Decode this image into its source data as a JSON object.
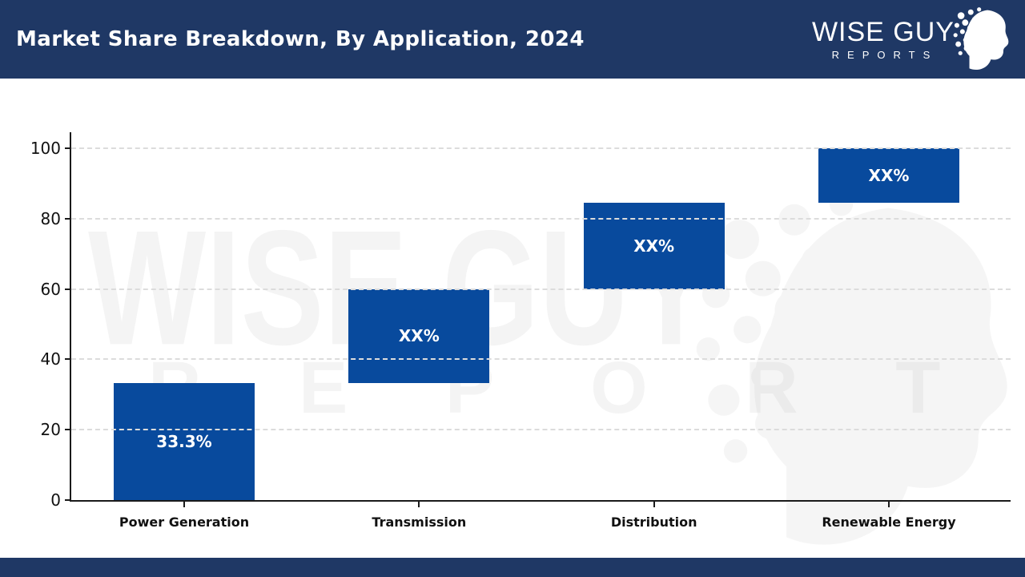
{
  "header": {
    "title": "Market Share Breakdown, By Application, 2024",
    "brand": {
      "line1": "WISE GUY",
      "line2": "REPORTS"
    }
  },
  "watermark": {
    "line1": "WISE GUY",
    "line2": "R E P O R T S"
  },
  "colors": {
    "header_bg": "#1f3865",
    "footer_bg": "#1f3865",
    "bar_fill": "#084a9d",
    "bar_label_text": "#ffffff",
    "gridline": "#dcdcdc",
    "axis": "#1a1a1a",
    "title_text": "#ffffff"
  },
  "chart_data": {
    "type": "bar",
    "variant": "floating-waterfall",
    "title": "Market Share Breakdown, By Application, 2024",
    "categories": [
      "Power Generation",
      "Transmission",
      "Distribution",
      "Renewable Energy"
    ],
    "segments": [
      {
        "category": "Power Generation",
        "start": 0,
        "end": 33.3,
        "value_label": "33.3%"
      },
      {
        "category": "Transmission",
        "start": 33.3,
        "end": 60,
        "value_label": "XX%"
      },
      {
        "category": "Distribution",
        "start": 60,
        "end": 84.5,
        "value_label": "XX%"
      },
      {
        "category": "Renewable Energy",
        "start": 84.5,
        "end": 100,
        "value_label": "XX%"
      }
    ],
    "xlabel": "",
    "ylabel": "",
    "ylim": [
      0,
      100
    ],
    "yticks": [
      0,
      20,
      40,
      60,
      80,
      100
    ],
    "grid": "horizontal-dashed",
    "grid_above_bars": true,
    "legend": "none"
  }
}
